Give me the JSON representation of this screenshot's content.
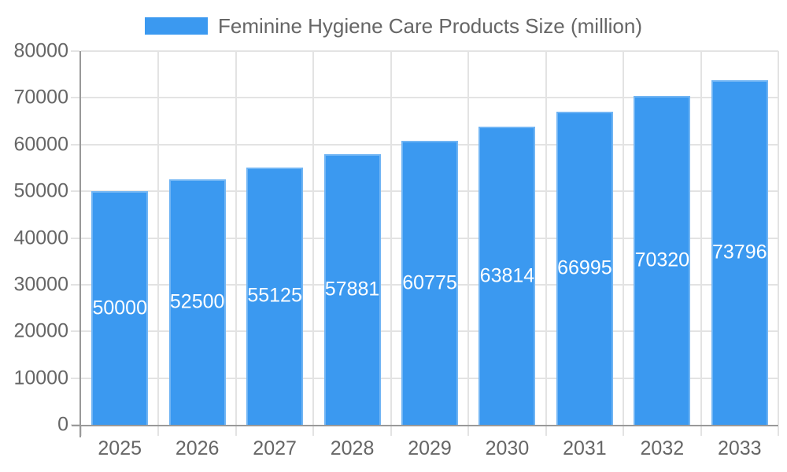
{
  "legend": {
    "label": "Feminine Hygiene Care Products Size (million)"
  },
  "colors": {
    "bar": "#3B99F0",
    "axis": "#999999",
    "grid": "#E3E3E3",
    "text": "#666666",
    "value_label": "#FFFFFF",
    "background": "#FFFFFF"
  },
  "chart_data": {
    "type": "bar",
    "title": "",
    "xlabel": "",
    "ylabel": "",
    "categories": [
      "2025",
      "2026",
      "2027",
      "2028",
      "2029",
      "2030",
      "2031",
      "2032",
      "2033"
    ],
    "values": [
      50000,
      52500,
      55125,
      57881,
      60775,
      63814,
      66995,
      70320,
      73796
    ],
    "series_name": "Feminine Hygiene Care Products Size (million)",
    "ylim": [
      0,
      80000
    ],
    "ytick_step": 10000,
    "ytick_labels": [
      "0",
      "10000",
      "20000",
      "30000",
      "40000",
      "50000",
      "60000",
      "70000",
      "80000"
    ],
    "grid": true,
    "legend_position": "top",
    "value_labels": "inside-center"
  }
}
